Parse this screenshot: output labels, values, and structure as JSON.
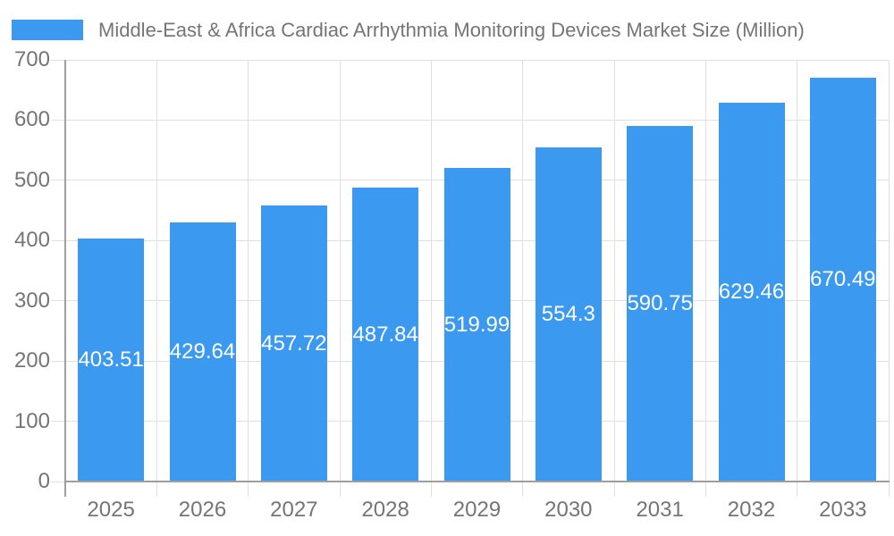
{
  "legend": {
    "swatch": "bar-color",
    "label": "Middle-East & Africa Cardiac Arrhythmia Monitoring Devices Market Size (Million)"
  },
  "colors": {
    "bar": "#3B99F0",
    "grid": "#e0e0e0",
    "axis": "#9e9e9e",
    "tick_text": "#757575",
    "title_text": "#757575",
    "value_label": "#ffffff",
    "background": "#ffffff"
  },
  "chart_data": {
    "type": "bar",
    "title": "Middle-East & Africa Cardiac Arrhythmia Monitoring Devices Market Size (Million)",
    "categories": [
      "2025",
      "2026",
      "2027",
      "2028",
      "2029",
      "2030",
      "2031",
      "2032",
      "2033"
    ],
    "values": [
      403.51,
      429.64,
      457.72,
      487.84,
      519.99,
      554.3,
      590.75,
      629.46,
      670.49
    ],
    "value_labels": [
      "403.51",
      "429.64",
      "457.72",
      "487.84",
      "519.99",
      "554.3",
      "590.75",
      "629.46",
      "670.49"
    ],
    "xlabel": "",
    "ylabel": "",
    "ylim": [
      0,
      700
    ],
    "yticks": [
      0,
      100,
      200,
      300,
      400,
      500,
      600,
      700
    ],
    "grid": true,
    "legend_position": "top-left",
    "value_label_position": "centered-inside-bar"
  }
}
